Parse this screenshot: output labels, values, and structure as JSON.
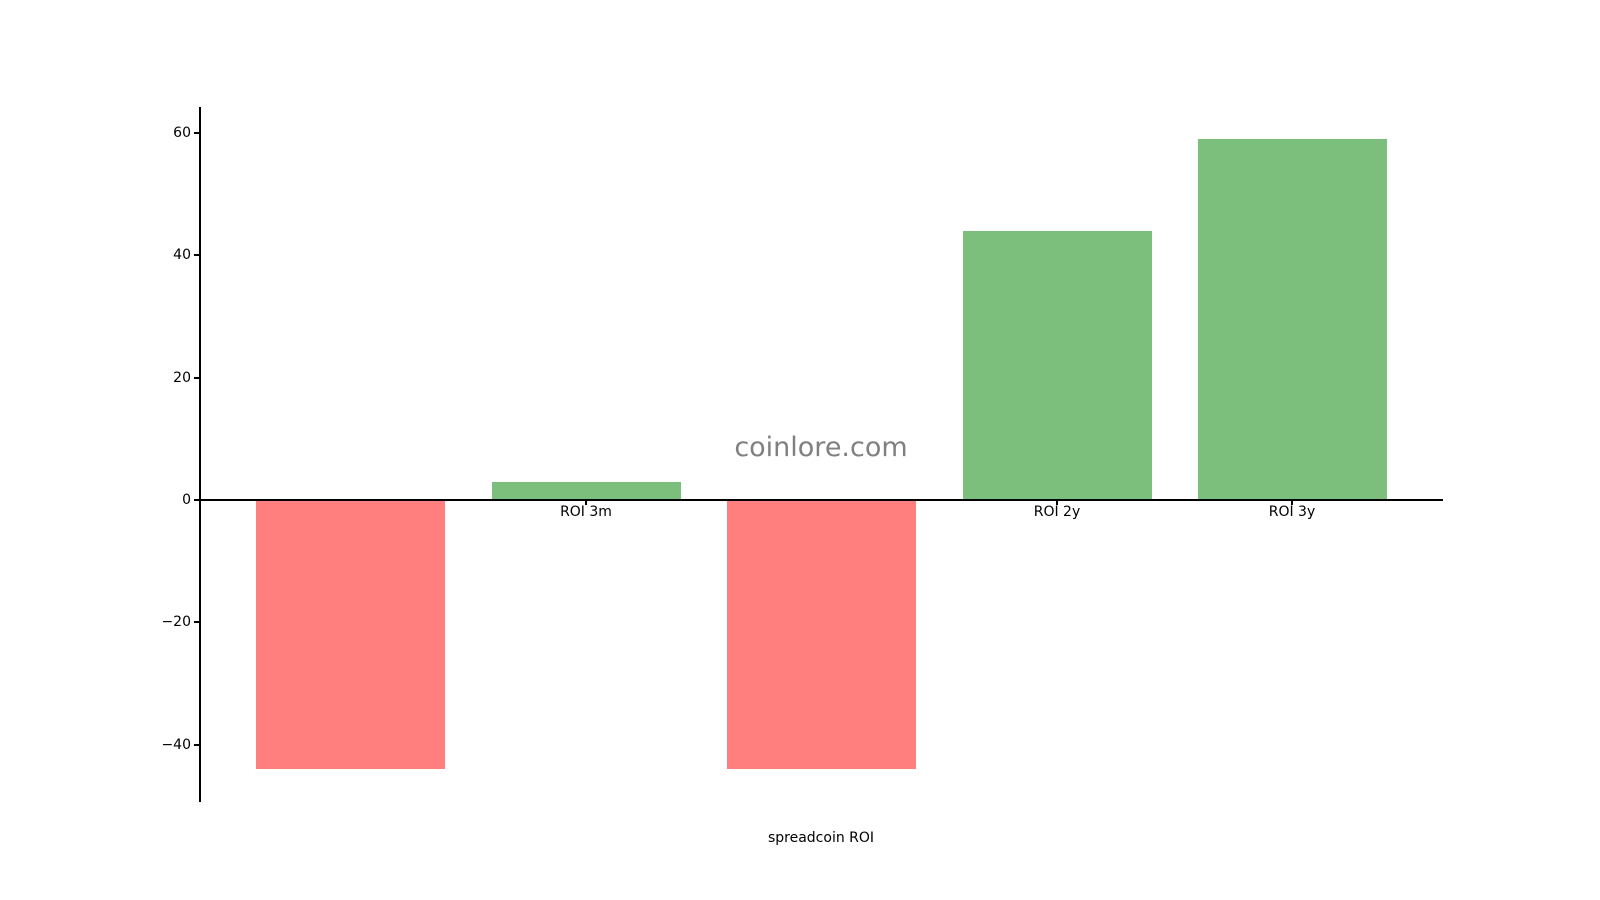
{
  "figure": {
    "watermark": "coinlore.com",
    "xlabel": "spreadcoin ROI"
  },
  "chart_data": {
    "type": "bar",
    "title": "",
    "xlabel": "spreadcoin ROI",
    "ylabel": "",
    "categories": [
      "",
      "ROI 3m",
      "",
      "ROI 2y",
      "ROI 3y"
    ],
    "values": [
      -44,
      3,
      -44,
      44,
      59
    ],
    "bar_colors": [
      "#ff7f7f",
      "#7cbf7c",
      "#ff7f7f",
      "#7cbf7c",
      "#7cbf7c"
    ],
    "positive_color": "#7cbf7c",
    "negative_color": "#ff7f7f",
    "ylim": [
      -49.4,
      64.2
    ],
    "yticks": [
      60,
      40,
      20,
      0,
      -20,
      -40
    ],
    "ytick_labels": [
      "60",
      "40",
      "20",
      "0",
      "−20",
      "−40"
    ],
    "grid": false,
    "legend_position": "none",
    "watermark": "coinlore.com",
    "axis_color": "#000000",
    "watermark_color": "#808080",
    "note": "labels of negative bars are hidden behind the bars"
  }
}
